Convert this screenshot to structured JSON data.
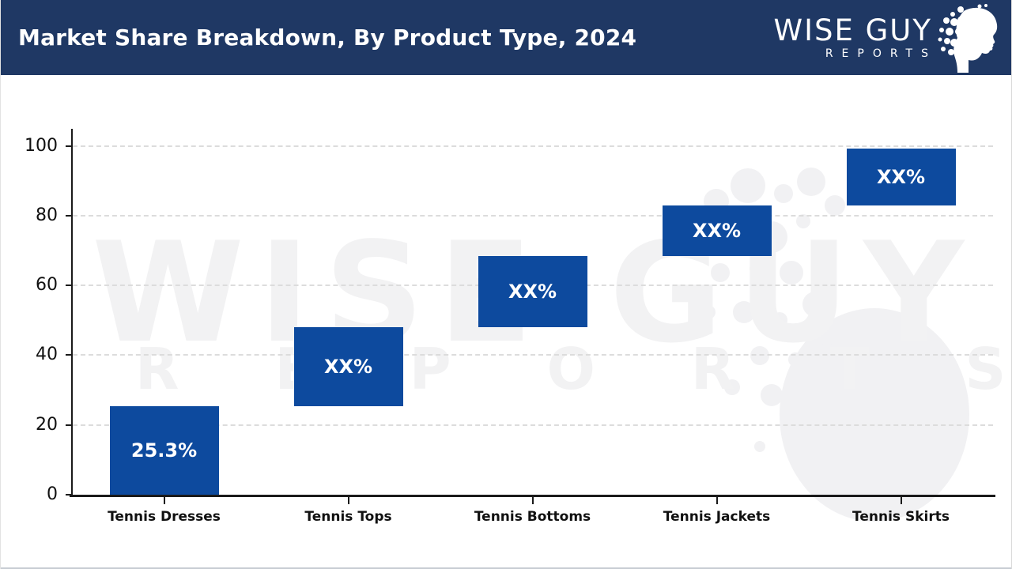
{
  "header": {
    "title": "Market Share Breakdown, By Product Type, 2024",
    "bg_color": "#1f3864",
    "logo": {
      "line1": "WISE GUY",
      "line2": "REPORTS"
    }
  },
  "watermark": {
    "line1": "WISE GUY",
    "line2": "R E P O R T S"
  },
  "chart_data": {
    "type": "bar",
    "subtype": "waterfall",
    "title": "Market Share Breakdown, By Product Type, 2024",
    "categories": [
      "Tennis Dresses",
      "Tennis Tops",
      "Tennis Bottoms",
      "Tennis Jackets",
      "Tennis Skirts"
    ],
    "segments": [
      {
        "category": "Tennis Dresses",
        "start": 0,
        "end": 25.3,
        "label": "25.3%"
      },
      {
        "category": "Tennis Tops",
        "start": 25.3,
        "end": 48.0,
        "label": "XX%"
      },
      {
        "category": "Tennis Bottoms",
        "start": 48.0,
        "end": 68.3,
        "label": "XX%"
      },
      {
        "category": "Tennis Jackets",
        "start": 68.3,
        "end": 82.8,
        "label": "XX%"
      },
      {
        "category": "Tennis Skirts",
        "start": 82.8,
        "end": 99.3,
        "label": "XX%"
      }
    ],
    "yticks": [
      0,
      20,
      40,
      60,
      80,
      100
    ],
    "ylim": [
      0,
      100
    ],
    "xlabel": "",
    "ylabel": "",
    "grid": "horizontal-dashed",
    "legend": "none",
    "bar_color": "#0d4a9e",
    "bar_label_color": "#ffffff",
    "axis_color": "#1a1a1a"
  }
}
